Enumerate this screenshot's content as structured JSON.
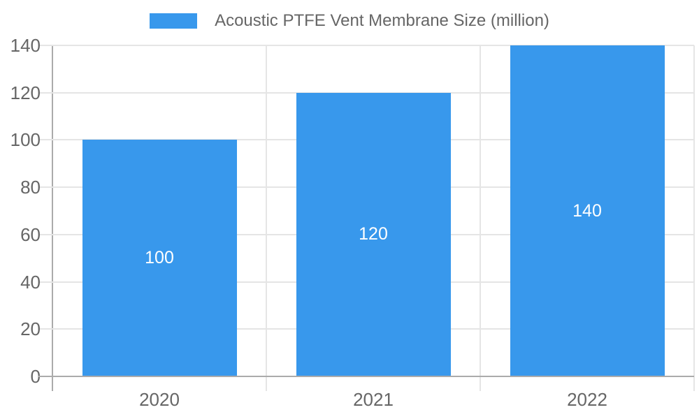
{
  "legend": {
    "label": "Acoustic PTFE Vent Membrane Size (million)"
  },
  "chart_data": {
    "type": "bar",
    "categories": [
      "2020",
      "2021",
      "2022"
    ],
    "values": [
      100,
      120,
      140
    ],
    "data_labels": [
      "100",
      "120",
      "140"
    ],
    "series": [
      {
        "name": "Acoustic PTFE Vent Membrane Size (million)",
        "values": [
          100,
          120,
          140
        ]
      }
    ],
    "title": "",
    "xlabel": "",
    "ylabel": "",
    "ylim": [
      0,
      140
    ],
    "yticks": [
      0,
      20,
      40,
      60,
      80,
      100,
      120,
      140
    ],
    "grid": true,
    "legend_position": "top-center",
    "colors": {
      "bar": "#3898EC",
      "grid_line": "#E5E5E5",
      "axis_line": "#ABABAB",
      "tick_label": "#666666",
      "data_label": "#FFFFFF",
      "background": "#FFFFFF"
    }
  }
}
